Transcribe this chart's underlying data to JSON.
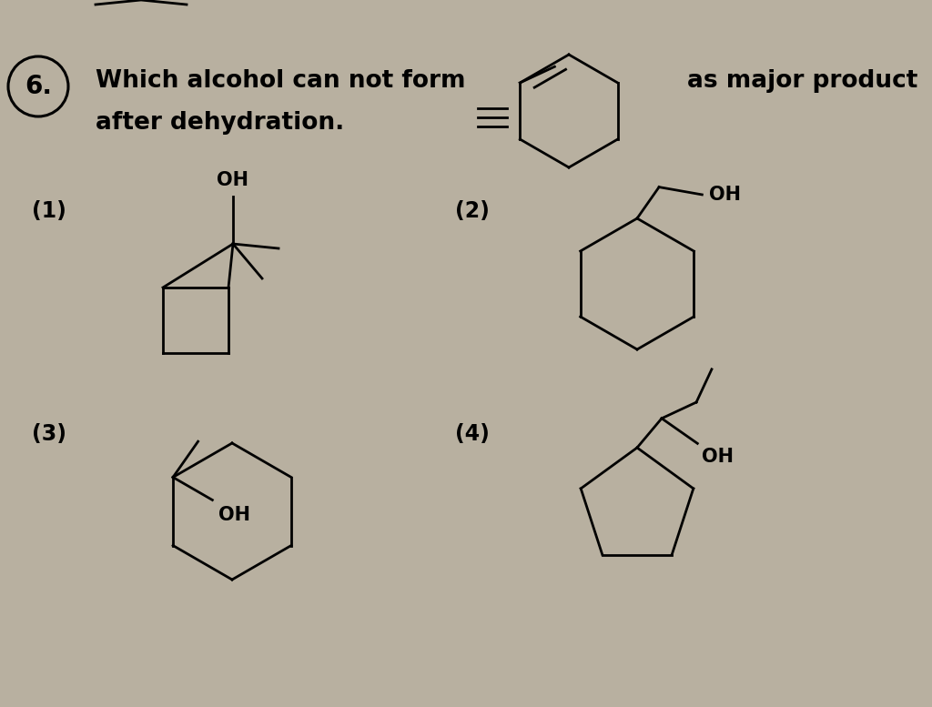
{
  "bg_color": "#b8b0a0",
  "question_text1": "Which alcohol can not form",
  "question_text2": "after dehydration.",
  "as_major": "as major product",
  "labels": [
    "(1)",
    "(2)",
    "(3)",
    "(4)"
  ],
  "font_size_question": 19,
  "font_size_label": 17,
  "font_size_oh": 15,
  "line_width": 2.0,
  "title_fontsize": 20
}
